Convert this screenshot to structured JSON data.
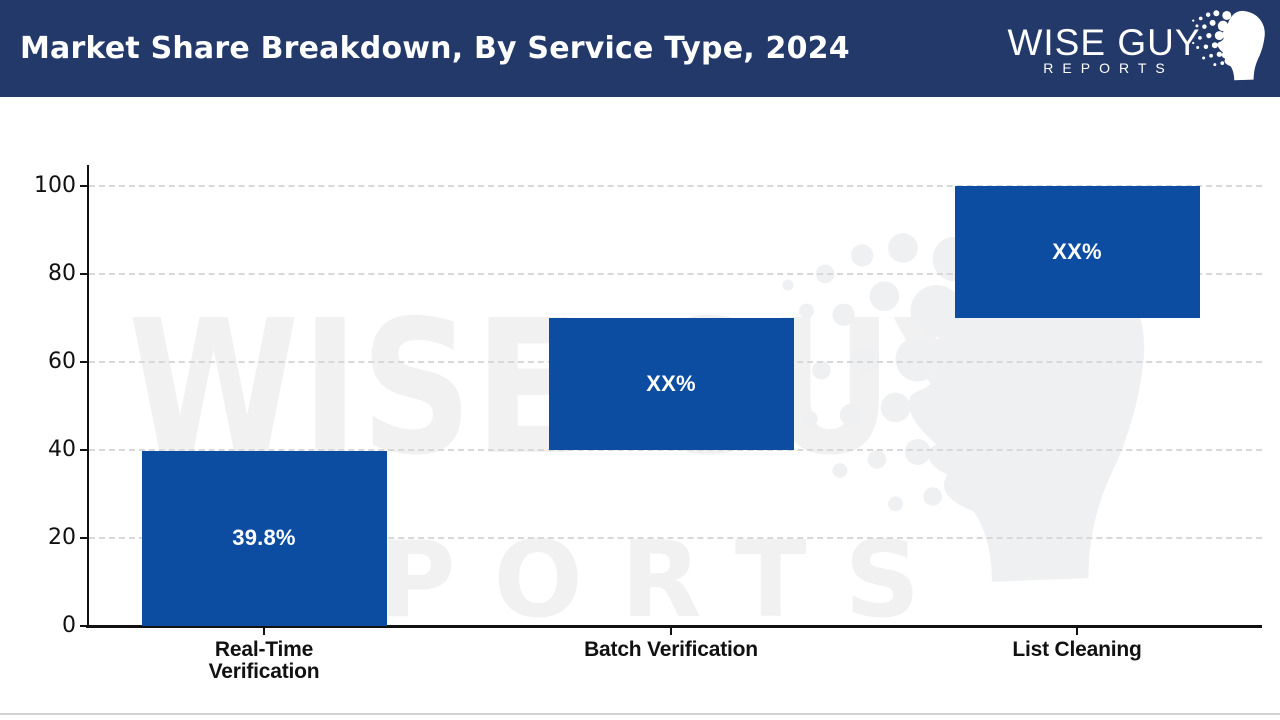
{
  "header": {
    "title": "Market Share Breakdown, By Service Type, 2024",
    "logo": {
      "name": "WISE GUY",
      "sub": "REPORTS"
    }
  },
  "watermark": {
    "line1": "WISE GUY",
    "line2": "REPORTS"
  },
  "chart_data": {
    "type": "bar",
    "subtype": "floating-waterfall-segments",
    "title": "Market Share Breakdown, By Service Type, 2024",
    "categories": [
      "Real-Time\nVerification",
      "Batch Verification",
      "List Cleaning"
    ],
    "segments": [
      {
        "category": "Real-Time Verification",
        "start": 0,
        "end": 39.8,
        "label": "39.8%"
      },
      {
        "category": "Batch Verification",
        "start": 40,
        "end": 70,
        "label": "XX%"
      },
      {
        "category": "List Cleaning",
        "start": 70,
        "end": 100,
        "label": "XX%"
      }
    ],
    "xlabel": "",
    "ylabel": "",
    "ylim": [
      0,
      100
    ],
    "yticks": [
      0,
      20,
      40,
      60,
      80,
      100
    ],
    "grid": "horizontal-dashed",
    "legend": "none",
    "bar_color": "#0c4da2",
    "bar_label_color": "#ffffff"
  },
  "colors": {
    "header_bg": "#22396a",
    "bar": "#0c4da2",
    "axis": "#111111",
    "gridline": "#d8d8d8",
    "watermark": "#f1f1f2"
  }
}
